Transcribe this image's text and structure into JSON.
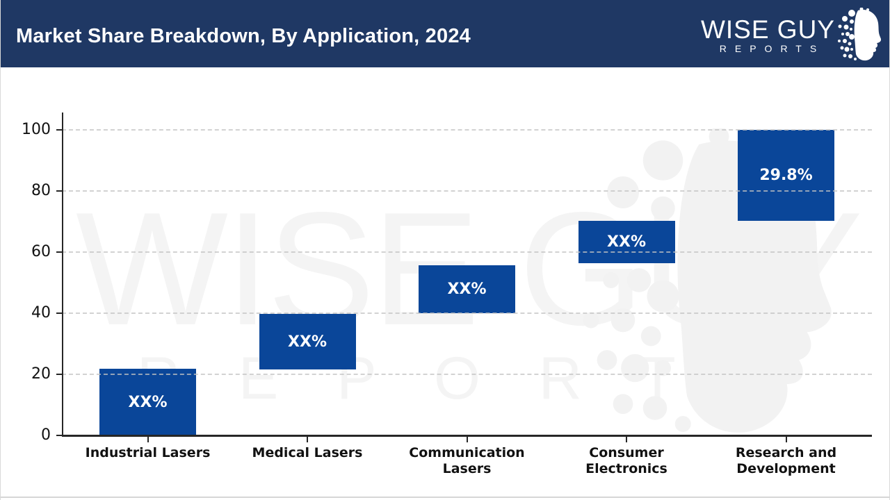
{
  "header": {
    "title": "Market Share Breakdown, By Application, 2024",
    "bg_color": "#1F3864",
    "logo": {
      "line1": "WISE GUY",
      "line2": "REPORTS",
      "icon": "dotted-face-icon"
    }
  },
  "watermark": {
    "line1": "WISE GUY",
    "line2": "R E P O R T S",
    "color": "#F4F4F4"
  },
  "chart_data": {
    "type": "bar",
    "subtype": "floating-waterfall",
    "title": "Market Share Breakdown, By Application, 2024",
    "categories": [
      "Industrial Lasers",
      "Medical Lasers",
      "Communication\nLasers",
      "Consumer\nElectronics",
      "Research and\nDevelopment"
    ],
    "bars": [
      {
        "category": "Industrial Lasers",
        "start": 0,
        "end": 21.7,
        "label": "XX%"
      },
      {
        "category": "Medical Lasers",
        "start": 21.5,
        "end": 39.7,
        "label": "XX%"
      },
      {
        "category": "Communication Lasers",
        "start": 40,
        "end": 55.6,
        "label": "XX%"
      },
      {
        "category": "Consumer Electronics",
        "start": 56.2,
        "end": 70.1,
        "label": "XX%"
      },
      {
        "category": "Research and Development",
        "start": 70.2,
        "end": 100,
        "label": "29.8%"
      }
    ],
    "xlabel": "",
    "ylabel": "",
    "yticks": [
      0,
      20,
      40,
      60,
      80,
      100
    ],
    "ylim": [
      0,
      105.5
    ],
    "grid": "dashed-horizontal",
    "legend": "none",
    "bar_color": "#0A4699",
    "bar_label_color": "#FFFFFF",
    "axis_color": "#262626",
    "grid_color": "#D9D9D9"
  }
}
